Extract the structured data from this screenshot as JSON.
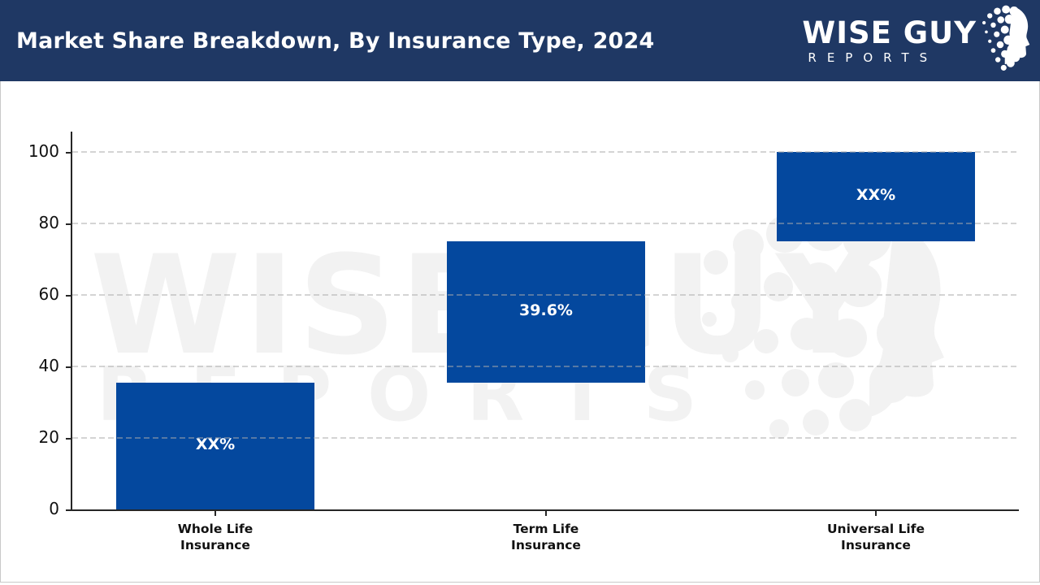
{
  "header": {
    "title": "Market Share Breakdown, By Insurance Type, 2024"
  },
  "logo": {
    "line1": "WISE GUY",
    "line2": "REPORTS",
    "face_icon": "dotted-profile-face"
  },
  "watermark": {
    "line1": "WISE GUY",
    "line2": "REPORTS",
    "face_icon": "dotted-profile-face"
  },
  "colors": {
    "header_bg": "#1f3864",
    "bar_fill": "#04489e",
    "bar_label_text": "#ffffff",
    "axis_spine": "#262626",
    "tick_label": "#111111",
    "grid_line_rgba": "rgba(170,170,170,0.5)",
    "watermark": "#f2f2f2",
    "frame_border": "#c9c9c9"
  },
  "chart_data": {
    "type": "bar",
    "subtype": "waterfall",
    "title": "Market Share Breakdown, By Insurance Type, 2024",
    "xlabel": "",
    "ylabel": "",
    "categories": [
      [
        "Whole Life",
        "Insurance"
      ],
      [
        "Term Life",
        "Insurance"
      ],
      [
        "Universal Life",
        "Insurance"
      ]
    ],
    "segments": [
      {
        "category": "Whole Life Insurance",
        "label": "XX%",
        "start": 0,
        "end": 35.4
      },
      {
        "category": "Term Life Insurance",
        "label": "39.6%",
        "start": 35.4,
        "end": 75.0
      },
      {
        "category": "Universal Life Insurance",
        "label": "XX%",
        "start": 75.0,
        "end": 100.0
      }
    ],
    "yticks": [
      0,
      20,
      40,
      60,
      80,
      100
    ],
    "ylim": [
      0,
      105
    ],
    "grid": "horizontal dashed, drawn over bars",
    "legend": false
  }
}
